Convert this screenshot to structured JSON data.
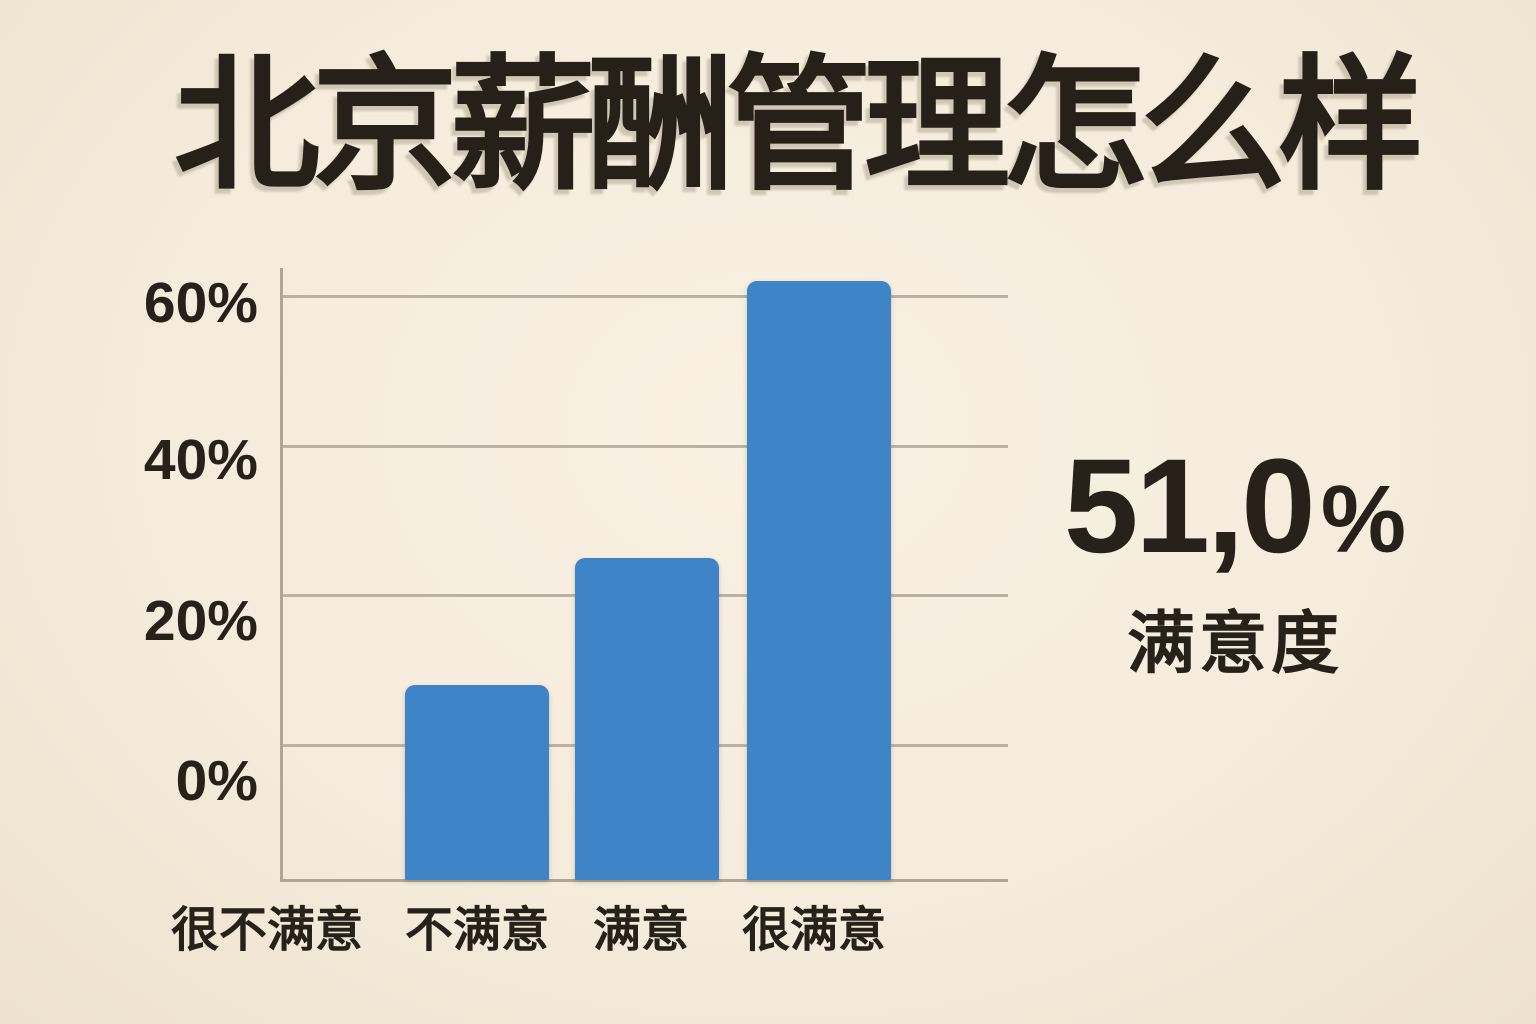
{
  "title": "北京薪酬管理怎么样",
  "chart_data": {
    "type": "bar",
    "title": "北京薪酬管理怎么样",
    "categories": [
      "很不满意",
      "不满意",
      "满意",
      "很满意"
    ],
    "values": [
      0,
      8,
      25,
      62
    ],
    "unit": "%",
    "yticks": [
      {
        "label": "60%",
        "value": 60
      },
      {
        "label": "40%",
        "value": 40
      },
      {
        "label": "20%",
        "value": 20
      },
      {
        "label": "0%",
        "value": 0
      }
    ],
    "ylim": [
      -18,
      66
    ],
    "grid": true,
    "legend": false,
    "bar_color": "#3e84c6"
  },
  "stat": {
    "value": "51,0",
    "unit": "%",
    "label": "满意度"
  },
  "colors": {
    "background": "#f5ecdd",
    "text": "#27211a",
    "grid": "#bab3a5",
    "axis": "#aea796",
    "bar": "#3e84c6"
  }
}
